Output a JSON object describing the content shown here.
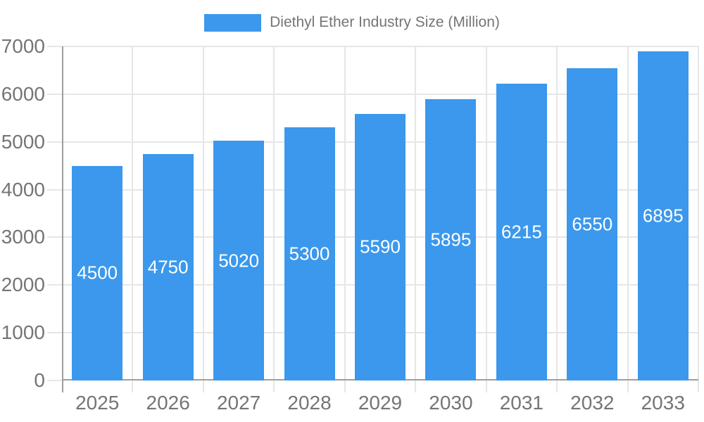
{
  "chart_data": {
    "type": "bar",
    "title": "Diethyl Ether Industry Size (Million)",
    "legend": {
      "position": "top",
      "label": "Diethyl Ether Industry Size (Million)"
    },
    "categories": [
      "2025",
      "2026",
      "2027",
      "2028",
      "2029",
      "2030",
      "2031",
      "2032",
      "2033"
    ],
    "series": [
      {
        "name": "Diethyl Ether Industry Size (Million)",
        "values": [
          4500,
          4750,
          5020,
          5300,
          5590,
          5895,
          6215,
          6550,
          6895
        ]
      }
    ],
    "value_labels": [
      "4500",
      "4750",
      "5020",
      "5300",
      "5590",
      "5895",
      "6215",
      "6550",
      "6895"
    ],
    "xlabel": "",
    "ylabel": "",
    "ylim": [
      0,
      7000
    ],
    "yticks": [
      0,
      1000,
      2000,
      3000,
      4000,
      5000,
      6000,
      7000
    ],
    "grid": true,
    "colors": {
      "bar": "#3B98EC",
      "value_label": "#FFFFFF",
      "axis_text": "#757575",
      "gridline": "#E6E6E6",
      "axis_line": "#9E9E9E",
      "background": "#FFFFFF"
    }
  }
}
